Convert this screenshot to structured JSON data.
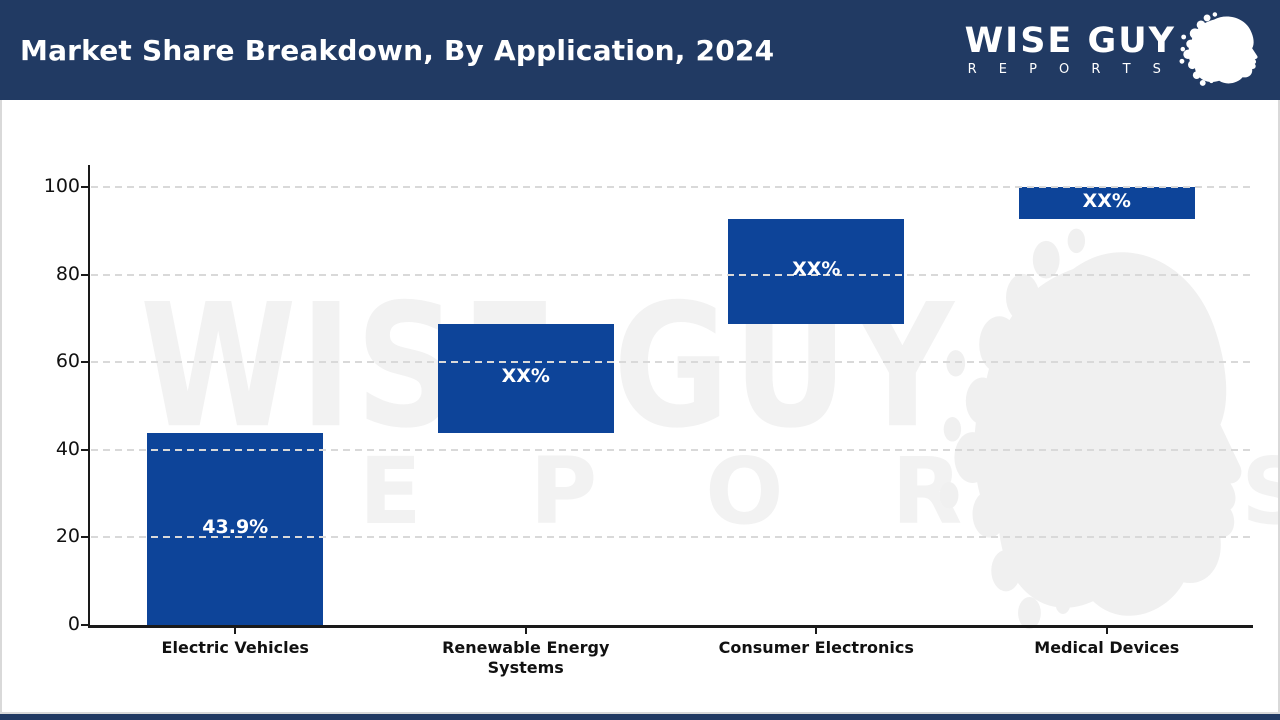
{
  "header": {
    "title": "Market Share Breakdown, By Application, 2024",
    "logo": {
      "line1": "WISE GUY",
      "line2": "R E P O R T S"
    }
  },
  "watermark": {
    "line1": "WISE GUY",
    "line2": "R E P O R T S"
  },
  "colors": {
    "header_bg": "#213a63",
    "footer_bg": "#213a63",
    "bar": "#0d4499",
    "bar_label": "#ffffff",
    "grid": "#d9d9d9",
    "axis": "#1a1a1a",
    "watermark": "#f2f2f2"
  },
  "chart_data": {
    "type": "bar",
    "subtype": "waterfall",
    "title": "Market Share Breakdown, By Application, 2024",
    "categories": [
      "Electric Vehicles",
      "Renewable Energy Systems",
      "Consumer Electronics",
      "Medical Devices"
    ],
    "series": [
      {
        "name": "Market Share %",
        "segments": [
          {
            "category": "Electric Vehicles",
            "start": 0,
            "end": 43.9,
            "label": "43.9%"
          },
          {
            "category": "Renewable Energy Systems",
            "start": 43.9,
            "end": 68.8,
            "label": "XX%"
          },
          {
            "category": "Consumer Electronics",
            "start": 68.8,
            "end": 92.7,
            "label": "XX%"
          },
          {
            "category": "Medical Devices",
            "start": 92.7,
            "end": 100,
            "label": "XX%"
          }
        ]
      }
    ],
    "xlabel": "",
    "ylabel": "",
    "ylim": [
      0,
      100
    ],
    "yticks": [
      0,
      20,
      40,
      60,
      80,
      100
    ],
    "grid": true,
    "grid_axis": "y",
    "grid_style": "dashed",
    "legend": false
  }
}
